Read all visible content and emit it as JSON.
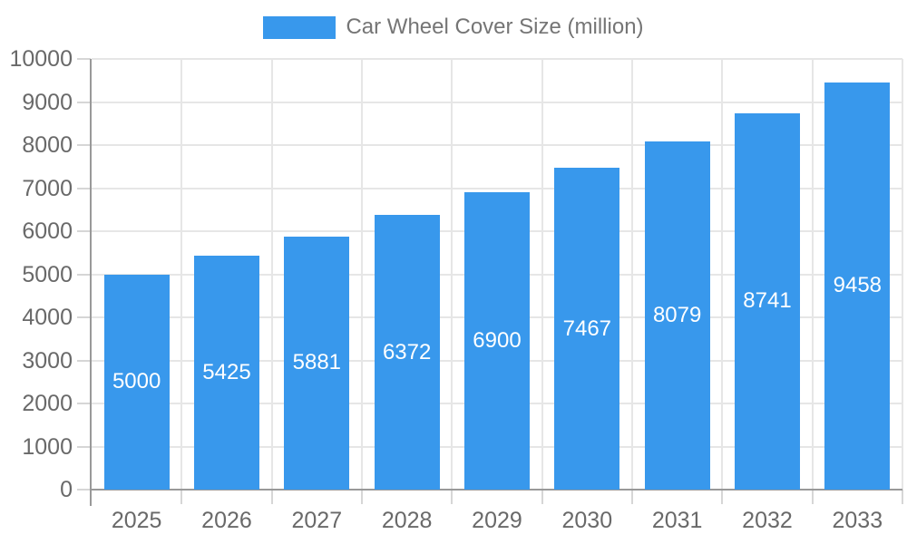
{
  "chart_data": {
    "type": "bar",
    "title": "Car Wheel Cover Size (million)",
    "categories": [
      "2025",
      "2026",
      "2027",
      "2028",
      "2029",
      "2030",
      "2031",
      "2032",
      "2033"
    ],
    "values": [
      5000,
      5425,
      5881,
      6372,
      6900,
      7467,
      8079,
      8741,
      9458
    ],
    "xlabel": "",
    "ylabel": "",
    "ylim": [
      0,
      10000
    ],
    "ytick_step": 1000,
    "grid": true,
    "legend_position": "top-center",
    "colors": {
      "bar": "#3898ec",
      "bar_value_label": "#ffffff",
      "axis_line": "#999999",
      "grid_line": "#e6e6e6",
      "tick_mark": "#d6d6d6",
      "axis_label": "#696969",
      "legend_text": "#757575",
      "background": "#ffffff"
    }
  }
}
